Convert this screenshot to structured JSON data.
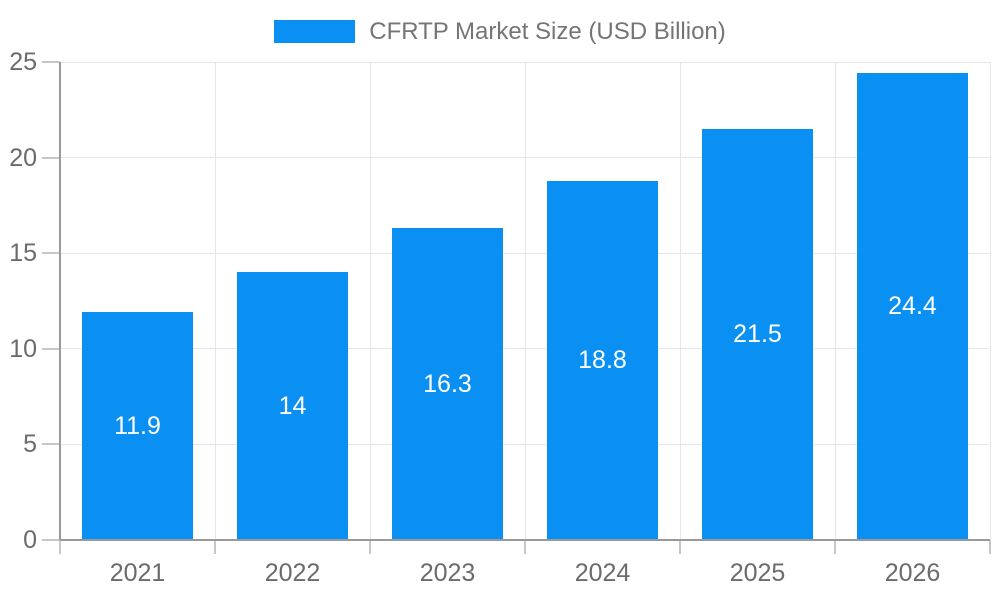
{
  "chart_data": {
    "type": "bar",
    "title": "CFRTP Market Size (USD Billion)",
    "categories": [
      "2021",
      "2022",
      "2023",
      "2024",
      "2025",
      "2026"
    ],
    "values": [
      11.9,
      14,
      16.3,
      18.8,
      21.5,
      24.4
    ],
    "value_labels": [
      "11.9",
      "14",
      "16.3",
      "18.8",
      "21.5",
      "24.4"
    ],
    "xlabel": "",
    "ylabel": "",
    "ylim": [
      0,
      25
    ],
    "yticks": [
      0,
      5,
      10,
      15,
      20,
      25
    ],
    "grid": true,
    "legend_position": "top",
    "colors": {
      "bar": "#0a8ff2",
      "grid": "#e6e6e6",
      "tick": "#c7c7c7",
      "axis": "#999999",
      "axis_text": "#6b6b6b",
      "legend_text": "#757575",
      "value_text": "#ffffff"
    }
  }
}
